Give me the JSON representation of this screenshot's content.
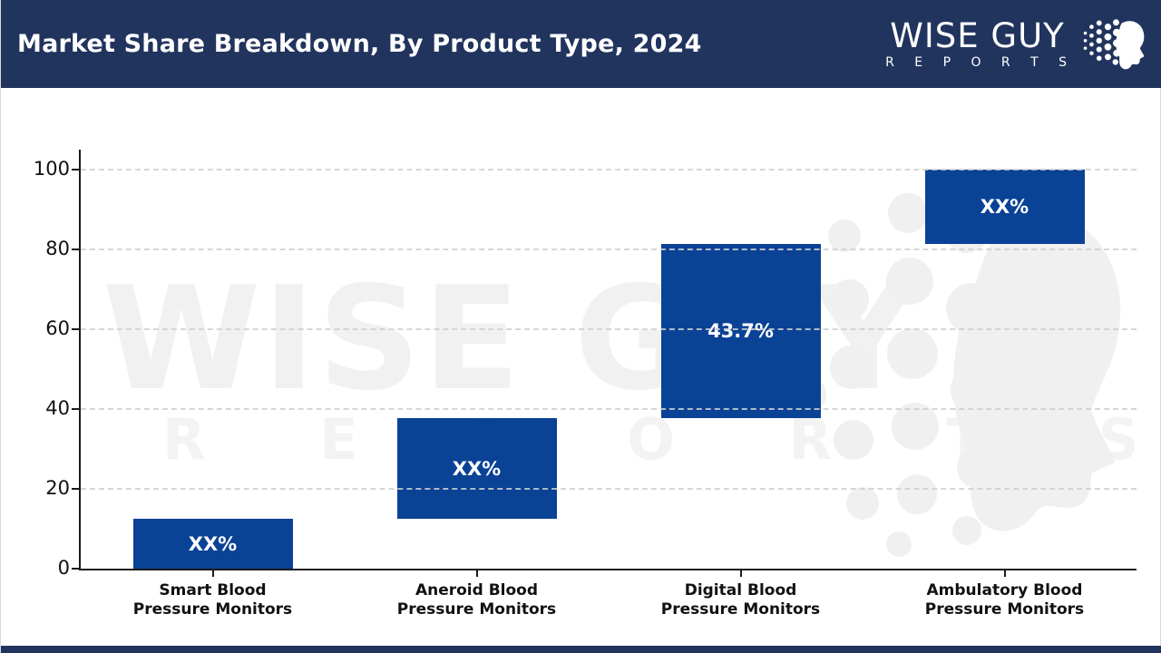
{
  "header": {
    "title": "Market Share Breakdown, By Product Type, 2024",
    "logo": {
      "brand_top": "WISE GUY",
      "brand_bottom": "R E P O R T S"
    }
  },
  "watermark": {
    "brand_top": "WISE GUY",
    "brand_bottom": "R E P O R T S"
  },
  "chart_data": {
    "type": "bar",
    "subtype": "floating-segment-waterfall",
    "title": "Market Share Breakdown, By Product Type, 2024",
    "categories": [
      "Smart Blood\nPressure Monitors",
      "Aneroid Blood\nPressure Monitors",
      "Digital Blood\nPressure Monitors",
      "Ambulatory Blood\nPressure Monitors"
    ],
    "segments": [
      {
        "category": "Smart Blood Pressure Monitors",
        "start": 0,
        "end": 12.5,
        "value_label": "XX%"
      },
      {
        "category": "Aneroid Blood Pressure Monitors",
        "start": 12.5,
        "end": 37.7,
        "value_label": "XX%"
      },
      {
        "category": "Digital Blood Pressure Monitors",
        "start": 37.7,
        "end": 81.4,
        "value_label": "43.7%"
      },
      {
        "category": "Ambulatory Blood Pressure Monitors",
        "start": 81.4,
        "end": 100,
        "value_label": "XX%"
      }
    ],
    "known_value": {
      "category": "Digital Blood Pressure Monitors",
      "value_pct": 43.7
    },
    "yticks": [
      0,
      20,
      40,
      60,
      80,
      100
    ],
    "ylim": [
      0,
      105
    ],
    "xlabel": "",
    "ylabel": "",
    "grid": {
      "horizontal": true,
      "style": "dashed"
    },
    "legend": null
  },
  "colors": {
    "header_bg": "#21345e",
    "footer_bg": "#21345e",
    "bar": "#0a4296",
    "bar_label": "#ffffff",
    "axis": "#1a1a1a",
    "grid": "#cfcfcf",
    "watermark": "#f1f1f1",
    "page_bg": "#ffffff"
  }
}
